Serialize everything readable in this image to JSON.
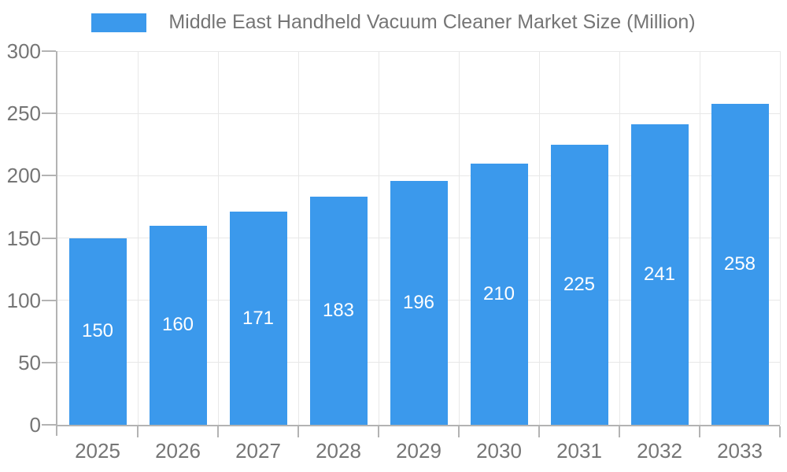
{
  "legend": {
    "label": "Middle East Handheld Vacuum Cleaner Market Size (Million)"
  },
  "chart_data": {
    "type": "bar",
    "title": "Middle East Handheld Vacuum Cleaner Market Size (Million)",
    "categories": [
      "2025",
      "2026",
      "2027",
      "2028",
      "2029",
      "2030",
      "2031",
      "2032",
      "2033"
    ],
    "values": [
      150,
      160,
      171,
      183,
      196,
      210,
      225,
      241,
      258
    ],
    "xlabel": "",
    "ylabel": "",
    "ylim": [
      0,
      300
    ],
    "yticks": [
      0,
      50,
      100,
      150,
      200,
      250,
      300
    ],
    "grid": true,
    "legend_position": "top-center",
    "bar_labels_inside": true,
    "colors": {
      "bar": "#3b99ec",
      "bar_label_text": "#ffffff",
      "axis_text": "#757575",
      "grid": "#e8e8e8",
      "axis_line": "#b3b3b3",
      "background": "#ffffff"
    }
  }
}
